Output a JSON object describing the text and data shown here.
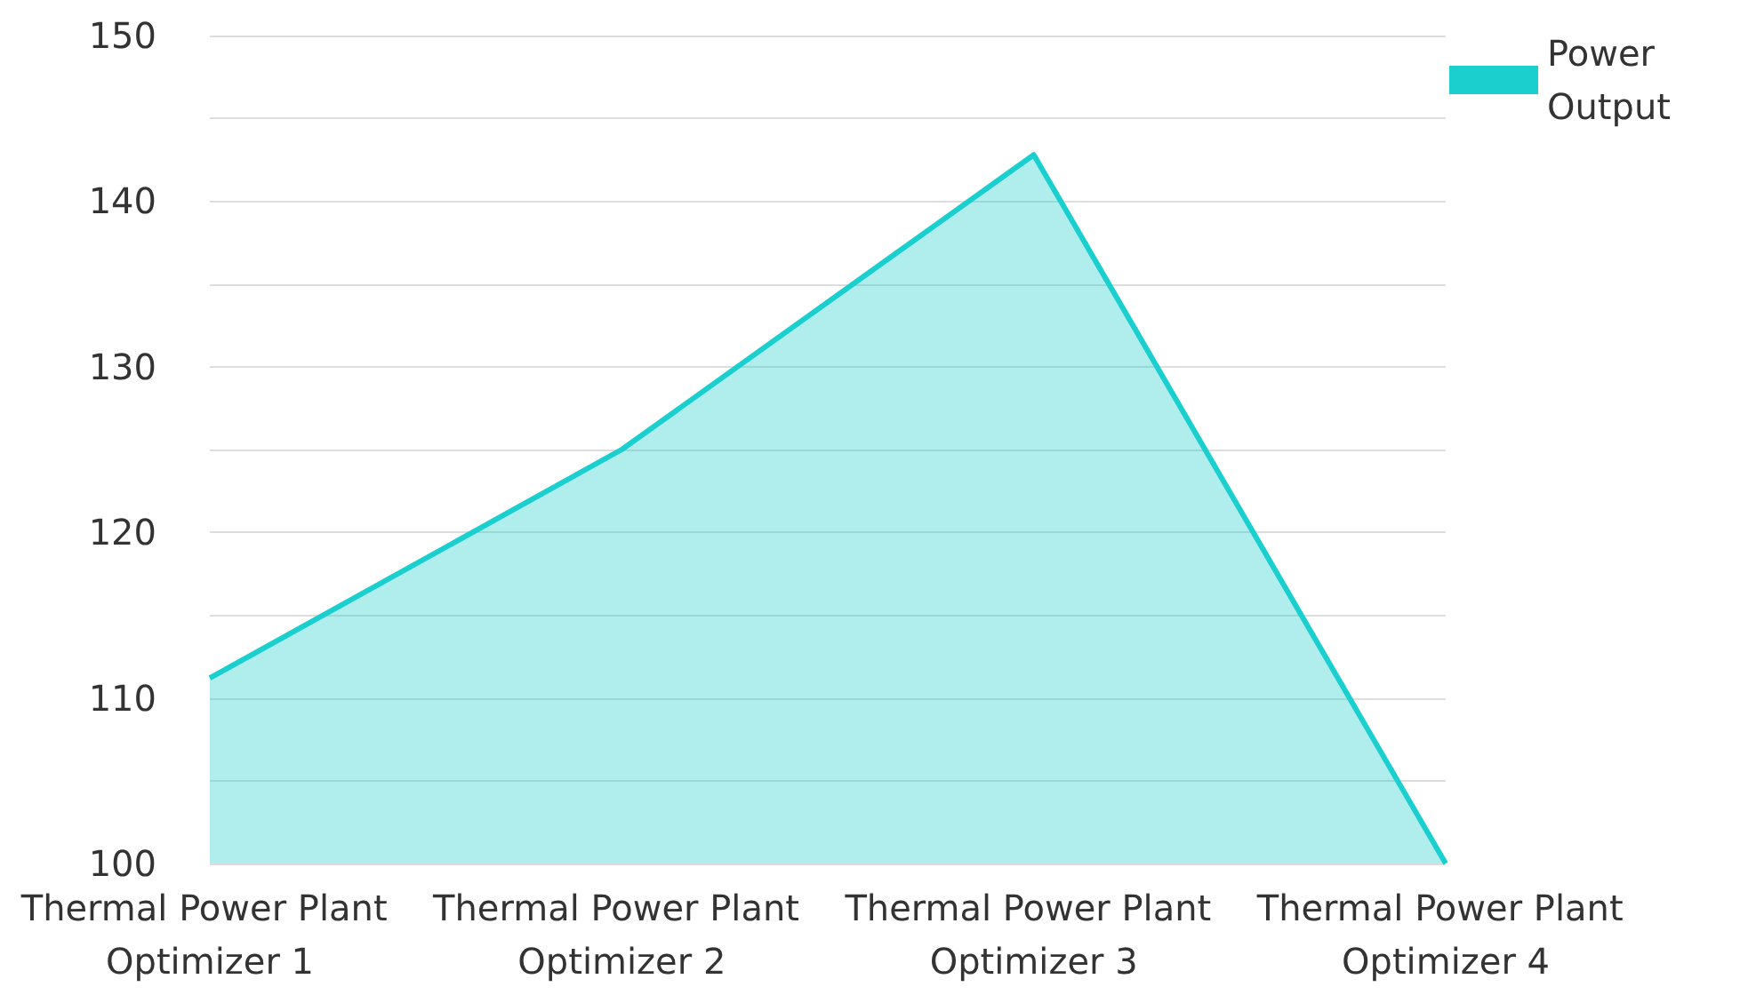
{
  "chart_data": {
    "type": "area",
    "categories": [
      "Thermal Power Plant Optimizer 1",
      "Thermal Power Plant Optimizer 2",
      "Thermal Power Plant Optimizer 3",
      "Thermal Power Plant Optimizer 4"
    ],
    "series": [
      {
        "name": "Power Output",
        "color": "#1ccfcf",
        "values": [
          111.2,
          125,
          142.8,
          100
        ]
      }
    ],
    "ylim": [
      100,
      150
    ],
    "yticks": [
      100,
      {
        "value": 105,
        "label": null
      },
      110,
      {
        "value": 115,
        "label": null
      },
      120,
      {
        "value": 125,
        "label": null
      },
      130,
      {
        "value": 135,
        "label": null
      },
      140,
      {
        "value": 145,
        "label": null
      },
      150
    ],
    "grid": "y",
    "legend": "top right",
    "marker": "none",
    "line_style": "solid"
  }
}
